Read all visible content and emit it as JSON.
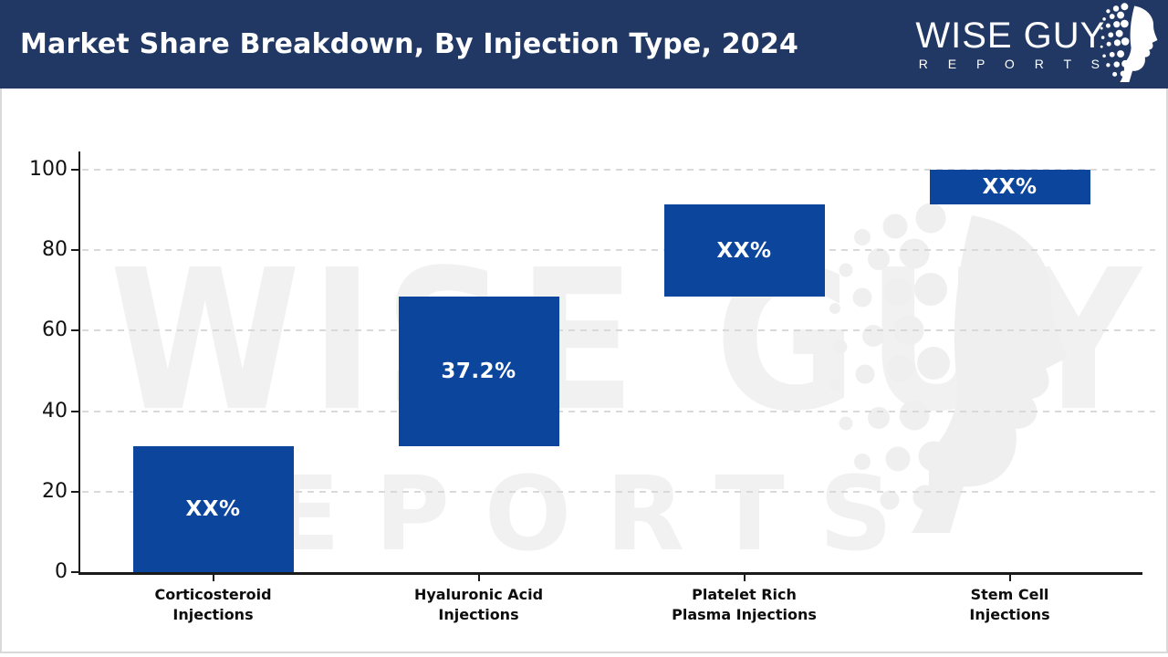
{
  "header": {
    "title": "Market Share Breakdown, By Injection Type, 2024",
    "logo": {
      "line1": "WISE GUY",
      "line2": "R E P O R T S",
      "head_icon": "dotted-head-profile"
    }
  },
  "watermark": {
    "line1": "WISE GUY",
    "line2": "REPORTS",
    "head_icon": "dotted-head-profile"
  },
  "colors": {
    "header_bg": "#213864",
    "bar": "#0c459c",
    "bar_label": "#ffffff",
    "grid": "#d9d9d9",
    "axis": "#1a1a1a",
    "border": "#d9d9d9",
    "watermark": "#f1f1f1"
  },
  "chart_data": {
    "type": "bar",
    "subtype": "floating-waterfall-segments",
    "title": "Market Share Breakdown, By Injection Type, 2024",
    "categories": [
      "Corticosteroid\nInjections",
      "Hyaluronic Acid\nInjections",
      "Platelet Rich\nPlasma Injections",
      "Stem Cell\nInjections"
    ],
    "segments": [
      {
        "category": "Corticosteroid Injections",
        "start": 0,
        "end": 31.2,
        "value_label": "XX%"
      },
      {
        "category": "Hyaluronic Acid Injections",
        "start": 31.2,
        "end": 68.4,
        "value": 37.2,
        "value_label": "37.2%"
      },
      {
        "category": "Platelet Rich Plasma Injections",
        "start": 68.4,
        "end": 91.4,
        "value_label": "XX%"
      },
      {
        "category": "Stem Cell Injections",
        "start": 91.4,
        "end": 100,
        "value_label": "XX%"
      }
    ],
    "yticks": [
      0,
      20,
      40,
      60,
      80,
      100
    ],
    "ylim": [
      0,
      104.6
    ],
    "xlabel": "",
    "ylabel": "",
    "grid": "horizontal-dashed",
    "legend": "none"
  }
}
